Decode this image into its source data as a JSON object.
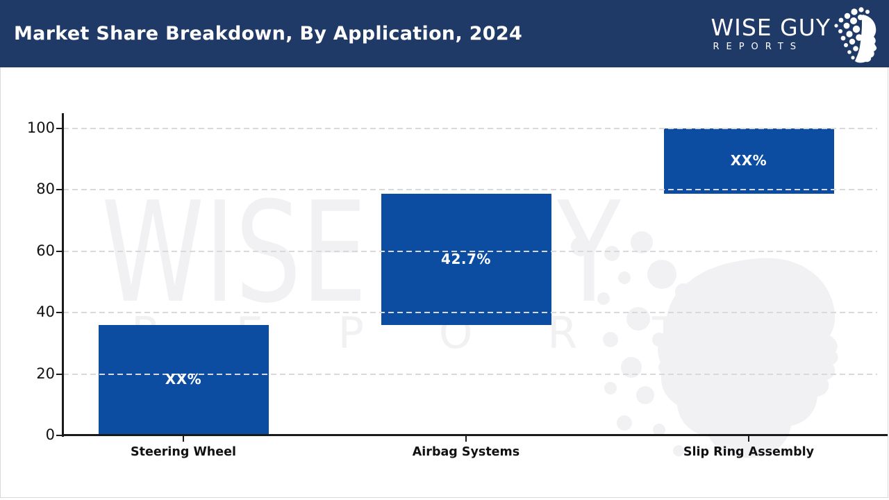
{
  "header": {
    "title": "Market Share Breakdown, By Application, 2024",
    "logo": {
      "line1": "WISE GUY",
      "line2": "REPORTS"
    }
  },
  "watermark": {
    "line1": "WISE GUY",
    "line2": "REPORTS"
  },
  "chart_data": {
    "type": "bar",
    "subtype": "waterfall",
    "title": "Market Share Breakdown, By Application, 2024",
    "categories": [
      "Steering Wheel",
      "Airbag Systems",
      "Slip Ring Assembly"
    ],
    "segments": [
      {
        "category": "Steering Wheel",
        "start": 0,
        "end": 36,
        "value": 36,
        "value_label": "XX%"
      },
      {
        "category": "Airbag Systems",
        "start": 36,
        "end": 78.7,
        "value": 42.7,
        "value_label": "42.7%"
      },
      {
        "category": "Slip Ring Assembly",
        "start": 78.7,
        "end": 100,
        "value": 21.3,
        "value_label": "XX%"
      }
    ],
    "yticks": [
      0,
      20,
      40,
      60,
      80,
      100
    ],
    "ylim": [
      0,
      105
    ],
    "xlabel": "",
    "ylabel": "",
    "grid": "horizontal dashed, drawn over bars",
    "legend": "none"
  },
  "colors": {
    "header_bg": "#203A68",
    "bar": "#0C4DA2",
    "bar_label": "#ffffff",
    "axis": "#1a1a1a",
    "grid": "#d9d9d9",
    "text": "#111111",
    "watermark": "#f1f1f3",
    "card_border": "#d9d9d9"
  }
}
